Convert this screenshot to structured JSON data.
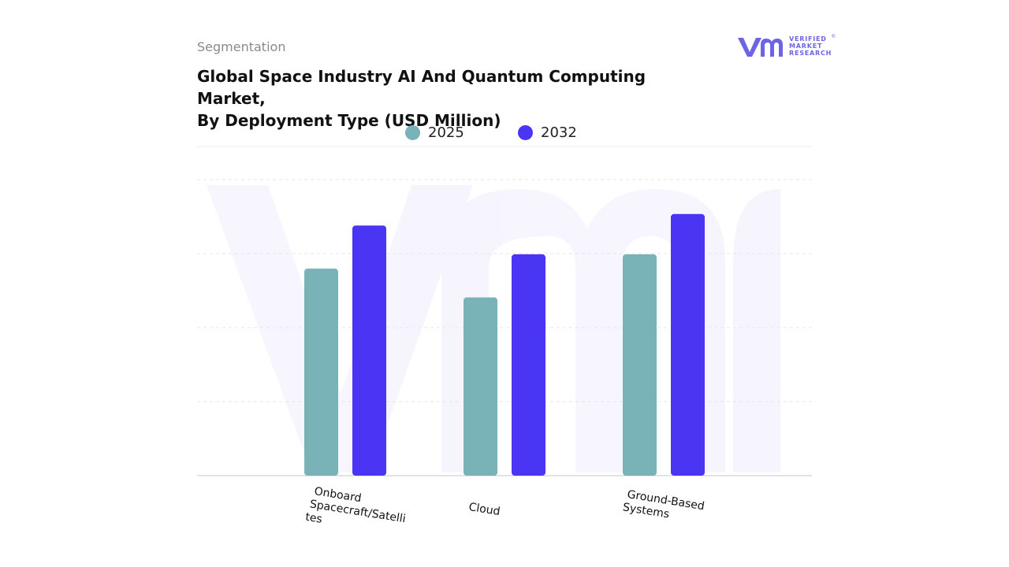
{
  "header": {
    "kicker": "Segmentation",
    "title_line1": "Global Space Industry AI And Quantum Computing Market,",
    "title_line2": "By Deployment Type (USD Million)"
  },
  "brand": {
    "logo_mark": "vmr",
    "line1": "VERIFIED",
    "line2": "MARKET",
    "line3": "RESEARCH",
    "registered": "®",
    "color": "#6c63e6"
  },
  "chart_data": {
    "type": "bar",
    "title": "Global Space Industry AI And Quantum Computing Market, By Deployment Type (USD Million)",
    "categories": [
      [
        "Onboard",
        "Spacecraft/Satelli",
        "tes"
      ],
      [
        "Cloud"
      ],
      [
        "Ground-Based",
        "Systems"
      ]
    ],
    "series": [
      {
        "name": "2025",
        "color": "#7ab3b7",
        "values": [
          72,
          62,
          77
        ]
      },
      {
        "name": "2032",
        "color": "#4b35f5",
        "values": [
          87,
          77,
          91
        ]
      }
    ],
    "ylim": [
      0,
      103
    ],
    "grid": true,
    "legend_position": "top-center",
    "xlabel": "",
    "ylabel": ""
  }
}
